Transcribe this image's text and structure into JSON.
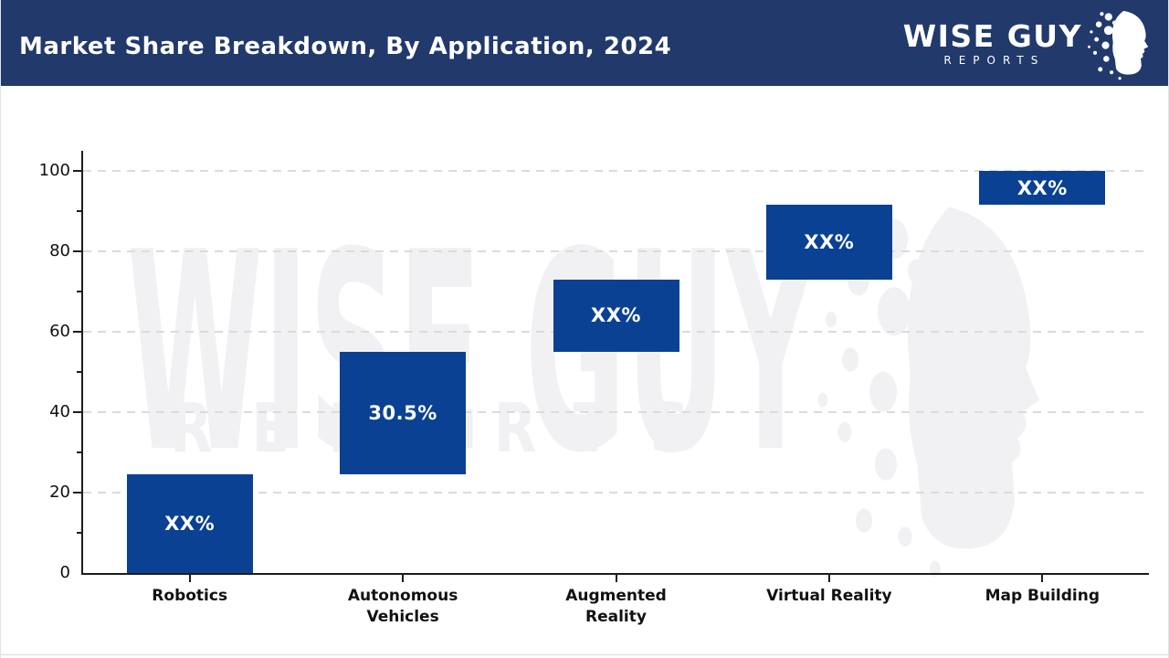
{
  "header": {
    "title": "Market Share Breakdown, By Application, 2024",
    "bg_color": "#21396b",
    "logo": {
      "line1": "WISE GUY",
      "line2": "REPORTS"
    }
  },
  "watermark": {
    "line1": "WISE GUY",
    "line2": "REPORTS"
  },
  "chart_data": {
    "type": "bar",
    "subtype": "waterfall-stacked",
    "title": "Market Share Breakdown, By Application, 2024",
    "categories": [
      "Robotics",
      "Autonomous Vehicles",
      "Augmented Reality",
      "Virtual Reality",
      "Map Building"
    ],
    "segments": [
      {
        "category": "Robotics",
        "start": 0,
        "end": 24.5,
        "value": 24.5,
        "value_label": "XX%"
      },
      {
        "category": "Autonomous Vehicles",
        "start": 24.5,
        "end": 55,
        "value": 30.5,
        "value_label": "30.5%"
      },
      {
        "category": "Augmented Reality",
        "start": 55,
        "end": 73,
        "value": 18,
        "value_label": "XX%"
      },
      {
        "category": "Virtual Reality",
        "start": 73,
        "end": 91.5,
        "value": 18.5,
        "value_label": "XX%"
      },
      {
        "category": "Map Building",
        "start": 91.5,
        "end": 100,
        "value": 8.5,
        "value_label": "XX%"
      }
    ],
    "y_ticks": [
      0,
      20,
      40,
      60,
      80,
      100
    ],
    "ylim": [
      0,
      105
    ],
    "xlabel": "",
    "ylabel": "",
    "legend": "none",
    "grid": "horizontal-dashed",
    "bar_color": "#0a4192",
    "gridline_color": "#dbdbdb",
    "axis_color": "#1c1c1c"
  }
}
